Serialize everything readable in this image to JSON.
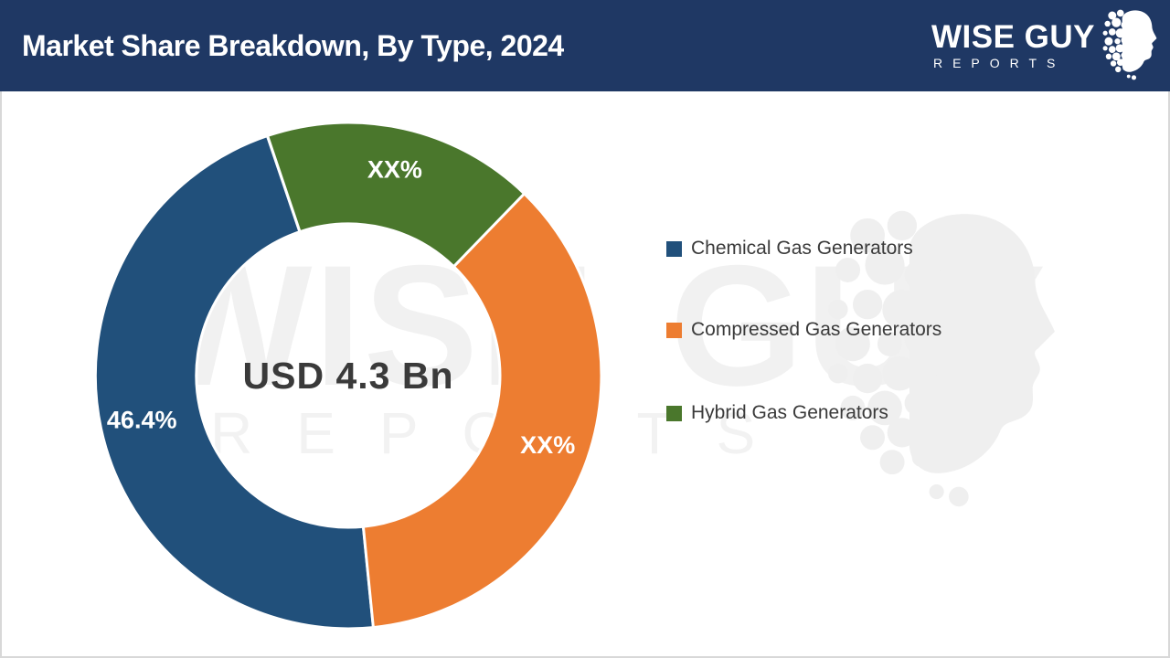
{
  "brand": {
    "name": "WISE GUY",
    "tagline": "REPORTS"
  },
  "header": {
    "title": "Market Share Breakdown, By Type, 2024"
  },
  "chart_data": {
    "type": "pie",
    "donut": true,
    "title": "Market Share Breakdown, By Type, 2024",
    "center_label": "USD 4.3 Bn",
    "categories": [
      "Chemical Gas Generators",
      "Compressed Gas Generators",
      "Hybrid Gas Generators"
    ],
    "values": [
      46.4,
      36.2,
      17.4
    ],
    "value_labels": [
      "46.4%",
      "XX%",
      "XX%"
    ],
    "colors": [
      "#21507B",
      "#ED7D31",
      "#4A772C"
    ],
    "start_angles_deg": [
      174.3,
      44.0,
      341.4
    ],
    "legend_position": "right",
    "background_color": "#FFFFFF",
    "header_color": "#1F3864"
  }
}
